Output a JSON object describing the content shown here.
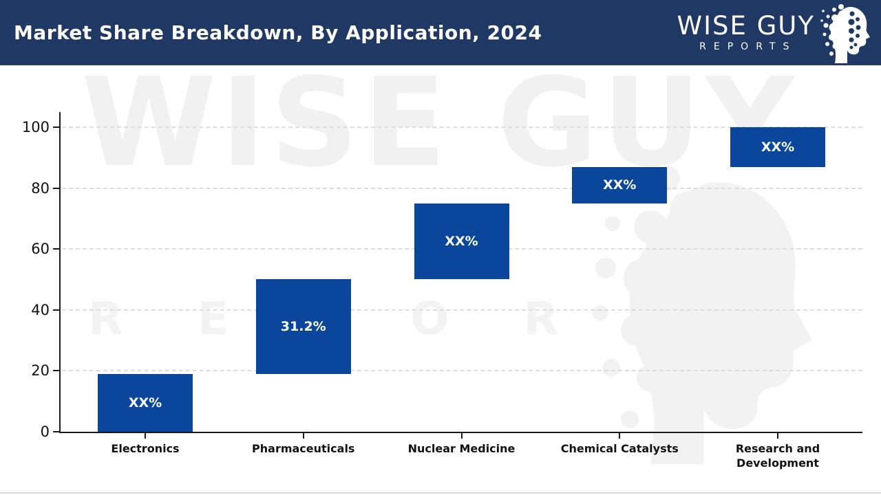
{
  "header": {
    "title": "Market Share Breakdown, By Application, 2024",
    "bg_color": "#1f3864",
    "logo": {
      "line1": "WISE GUY",
      "line2": "REPORTS"
    }
  },
  "watermark": {
    "line1": "WISE GUY",
    "line2": "REPORTS"
  },
  "chart_data": {
    "type": "bar",
    "subtype": "floating-waterfall",
    "title": "Market Share Breakdown, By Application, 2024",
    "categories": [
      "Electronics",
      "Pharmaceuticals",
      "Nuclear Medicine",
      "Chemical Catalysts",
      "Research and Development"
    ],
    "segments": [
      {
        "category": "Electronics",
        "start": 0,
        "end": 19,
        "value": 19,
        "label": "XX%"
      },
      {
        "category": "Pharmaceuticals",
        "start": 19,
        "end": 50.2,
        "value": 31.2,
        "label": "31.2%"
      },
      {
        "category": "Nuclear Medicine",
        "start": 50.2,
        "end": 75,
        "value": 24.8,
        "label": "XX%"
      },
      {
        "category": "Chemical Catalysts",
        "start": 75,
        "end": 87,
        "value": 12,
        "label": "XX%"
      },
      {
        "category": "Research and Development",
        "start": 87,
        "end": 100,
        "value": 13,
        "label": "XX%"
      }
    ],
    "xlabel": "",
    "ylabel": "",
    "ylim": [
      0,
      100
    ],
    "yticks": [
      0,
      20,
      40,
      60,
      80,
      100
    ],
    "grid": "dashed-horizontal",
    "legend": "none",
    "bar_color": "#0a469b",
    "grid_color": "#dcdcdc",
    "axis_color": "#1a1a1a"
  }
}
